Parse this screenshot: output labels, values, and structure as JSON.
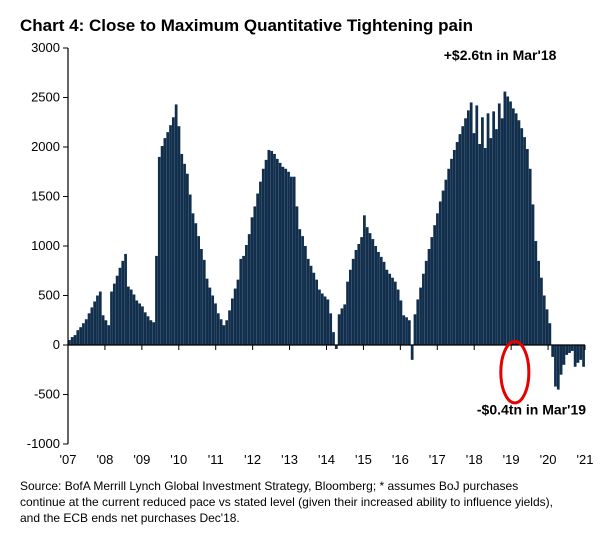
{
  "title": "Chart 4: Close to Maximum Quantitative Tightening pain",
  "source_line1": "Source: BofA Merrill Lynch Global Investment Strategy, Bloomberg; * assumes BoJ purchases",
  "source_line2": "continue at the current reduced pace vs stated level (given their increased ability to influence yields),",
  "source_line3": "and the ECB ends net purchases Dec'18.",
  "chart": {
    "type": "bar",
    "bar_color": "#112f4c",
    "background_color": "#ffffff",
    "axis_color": "#000000",
    "tick_color": "#000000",
    "annotation_top": "+$2.6tn in Mar'18",
    "annotation_bottom": "-$0.4tn in Mar'19",
    "ellipse_color": "#e60000",
    "ellipse_stroke_width": 3,
    "ylim": [
      -1000,
      3000
    ],
    "ytick_step": 500,
    "yticks": [
      -1000,
      -500,
      0,
      500,
      1000,
      1500,
      2000,
      2500,
      3000
    ],
    "x_start_year": 2007,
    "x_end_year": 2021,
    "xticks": [
      "'07",
      "'08",
      "'09",
      "'10",
      "'11",
      "'12",
      "'13",
      "'14",
      "'15",
      "'16",
      "'17",
      "'18",
      "'19",
      "'20",
      "'21"
    ],
    "tick_fontsize": 13,
    "title_fontsize": 17,
    "annotation_fontsize": 14,
    "ellipse_center_year": 2019.1,
    "ellipse_center_value": -275,
    "ellipse_rx_years": 0.38,
    "ellipse_ry_value": 310,
    "values": [
      50,
      80,
      100,
      150,
      180,
      220,
      260,
      320,
      380,
      440,
      500,
      540,
      300,
      250,
      200,
      540,
      620,
      700,
      780,
      850,
      920,
      590,
      560,
      510,
      450,
      420,
      390,
      330,
      290,
      250,
      230,
      900,
      1900,
      2010,
      2090,
      2150,
      2220,
      2300,
      2430,
      2210,
      1930,
      1830,
      1730,
      1520,
      1330,
      1230,
      1100,
      970,
      860,
      670,
      580,
      500,
      420,
      320,
      260,
      200,
      250,
      350,
      470,
      570,
      660,
      870,
      900,
      1010,
      1120,
      1290,
      1400,
      1530,
      1650,
      1780,
      1870,
      1970,
      1960,
      1930,
      1880,
      1840,
      1800,
      1780,
      1750,
      1700,
      1700,
      1400,
      1170,
      1100,
      1000,
      870,
      800,
      730,
      660,
      560,
      520,
      490,
      460,
      320,
      130,
      -40,
      310,
      370,
      410,
      640,
      760,
      870,
      960,
      1020,
      1090,
      1310,
      1190,
      1130,
      1070,
      1000,
      940,
      890,
      840,
      760,
      720,
      680,
      640,
      560,
      450,
      300,
      280,
      250,
      -150,
      310,
      460,
      580,
      720,
      850,
      970,
      1090,
      1210,
      1330,
      1450,
      1560,
      1670,
      1780,
      1880,
      1970,
      2050,
      2130,
      2210,
      2290,
      2370,
      2450,
      2140,
      2420,
      2030,
      2300,
      1990,
      2340,
      2090,
      2360,
      2180,
      2440,
      2290,
      2560,
      2510,
      2460,
      2390,
      2340,
      2270,
      2190,
      2100,
      1980,
      1780,
      1420,
      1050,
      850,
      680,
      500,
      360,
      220,
      -120,
      -420,
      -450,
      -300,
      -200,
      -100,
      -80,
      -60,
      -220,
      -180,
      -150,
      -220
    ]
  }
}
